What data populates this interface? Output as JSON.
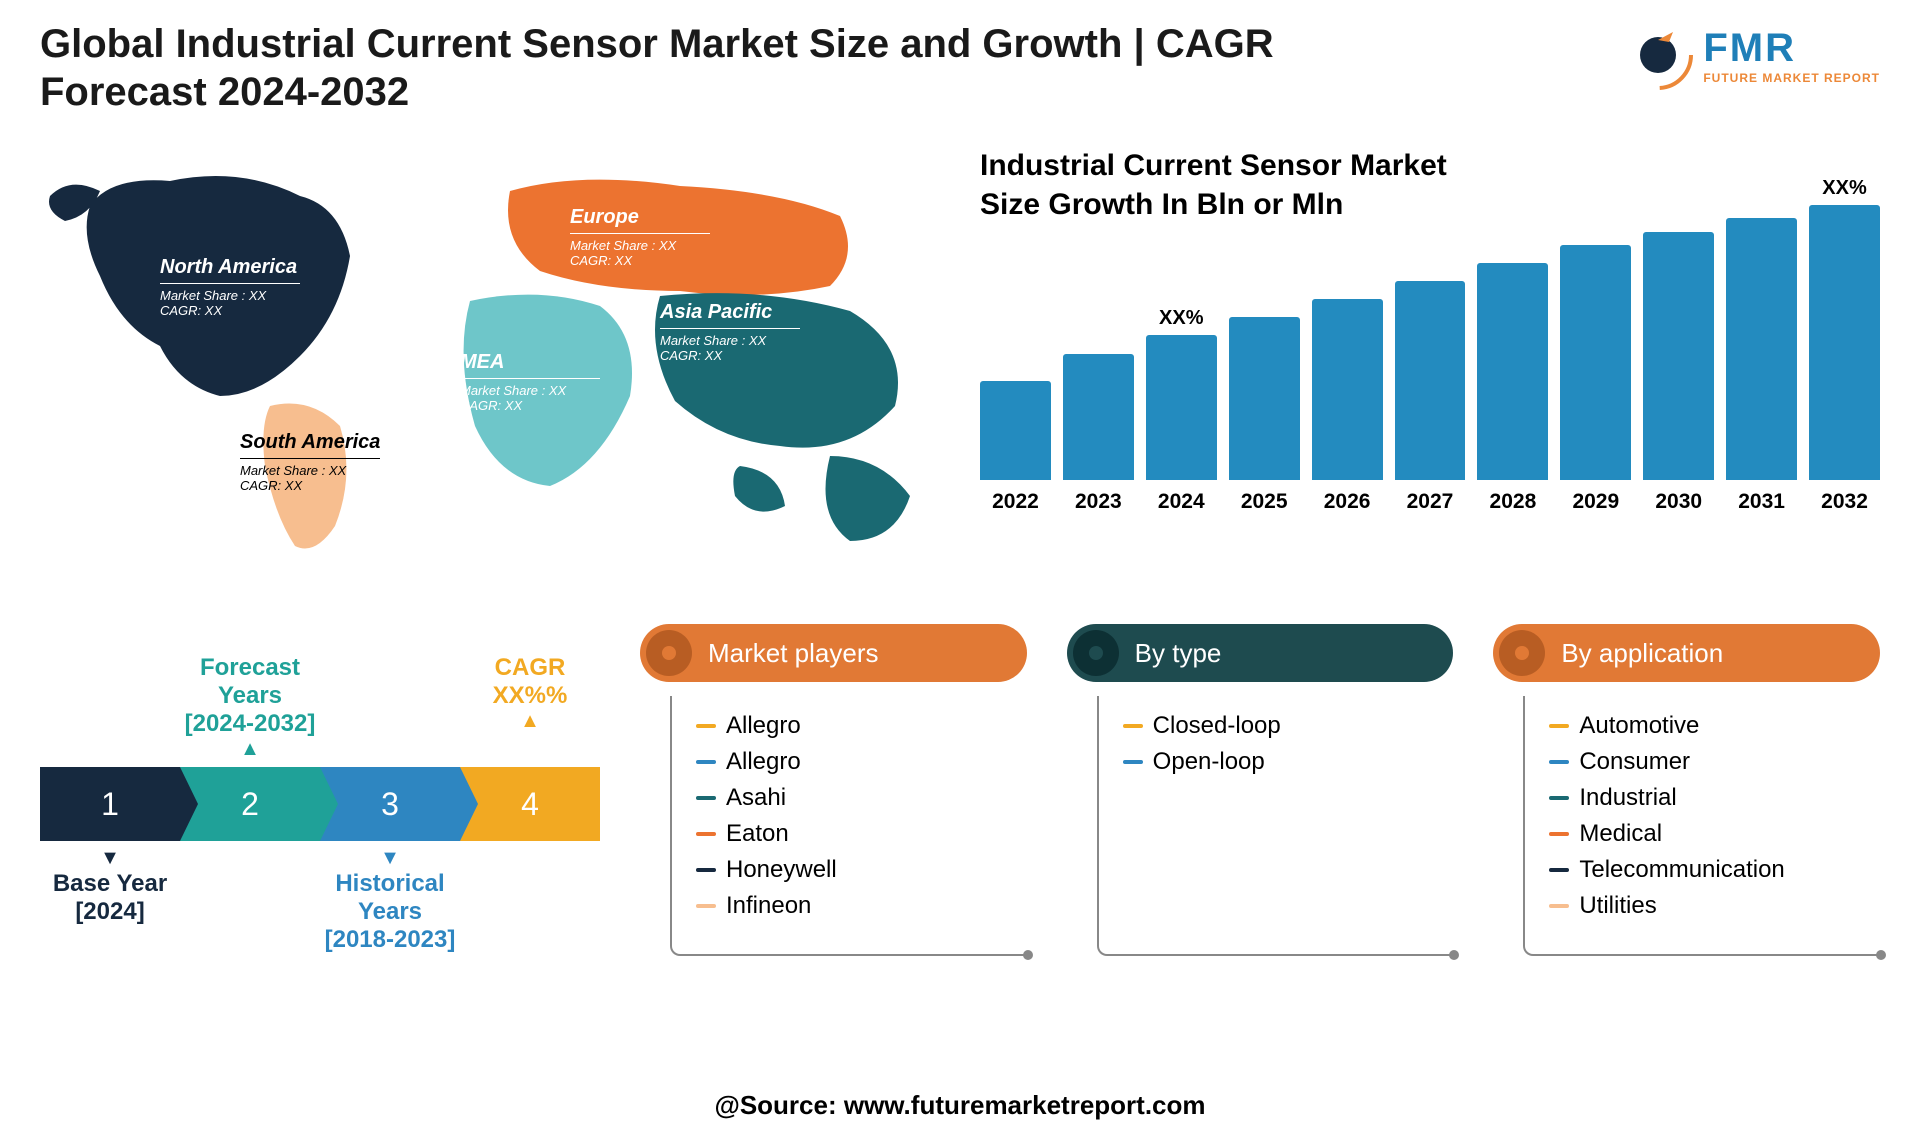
{
  "title": "Global Industrial Current Sensor Market Size and Growth | CAGR Forecast 2024-2032",
  "logo": {
    "main": "FMR",
    "sub": "FUTURE MARKET REPORT"
  },
  "map": {
    "regions": [
      {
        "name": "North America",
        "share": "Market Share : XX",
        "cagr": "CAGR: XX",
        "color": "#16293f"
      },
      {
        "name": "South America",
        "share": "Market Share : XX",
        "cagr": "CAGR: XX",
        "color": "#f7be8f"
      },
      {
        "name": "Europe",
        "share": "Market Share : XX",
        "cagr": "CAGR: XX",
        "color": "#ec7330"
      },
      {
        "name": "MEA",
        "share": "Market Share : XX",
        "cagr": "CAGR: XX",
        "color": "#6ec6c9"
      },
      {
        "name": "Asia Pacific",
        "share": "Market Share : XX",
        "cagr": "CAGR: XX",
        "color": "#1a6972"
      }
    ]
  },
  "bar_chart": {
    "title": "Industrial Current Sensor Market Size Growth In Bln or Mln",
    "categories": [
      "2022",
      "2023",
      "2024",
      "2025",
      "2026",
      "2027",
      "2028",
      "2029",
      "2030",
      "2031",
      "2032"
    ],
    "values": [
      110,
      140,
      160,
      180,
      200,
      220,
      240,
      260,
      275,
      290,
      305
    ],
    "value_labels": [
      "",
      "",
      "XX%",
      "",
      "",
      "",
      "",
      "",
      "",
      "",
      "XX%"
    ],
    "ymax": 310,
    "bar_color": "#238bbf",
    "label_fontsize": 21
  },
  "timeline": {
    "segments": [
      {
        "num": "1",
        "color": "#16293f",
        "arrow_color": "#16293f"
      },
      {
        "num": "2",
        "color": "#1fa198",
        "arrow_color": "#1fa198"
      },
      {
        "num": "3",
        "color": "#2e86c1",
        "arrow_color": "#2e86c1"
      },
      {
        "num": "4",
        "color": "#f2a922",
        "arrow_color": "#f2a922"
      }
    ],
    "labels": {
      "forecast": {
        "title": "Forecast Years",
        "sub": "[2024-2032]",
        "color": "#1fa198"
      },
      "cagr": {
        "title": "CAGR",
        "sub": "XX%%",
        "color": "#f2a922"
      },
      "base": {
        "title": "Base Year",
        "sub": "[2024]",
        "color": "#16293f"
      },
      "historical": {
        "title": "Historical Years",
        "sub": "[2018-2023]",
        "color": "#2e86c1"
      }
    }
  },
  "pills": [
    {
      "title": "Market players",
      "bg": "#e17935",
      "dot_bg": "#b85d23",
      "items": [
        "Allegro",
        "Allegro",
        "Asahi",
        "Eaton",
        "Honeywell",
        "Infineon"
      ],
      "tick_colors": [
        "#f2a922",
        "#2e86c1",
        "#1a6972",
        "#ec7330",
        "#16293f",
        "#f7be8f"
      ]
    },
    {
      "title": "By type",
      "bg": "#1e4b4f",
      "dot_bg": "#0d3034",
      "items": [
        "Closed-loop",
        "Open-loop"
      ],
      "tick_colors": [
        "#f2a922",
        "#2e86c1"
      ]
    },
    {
      "title": "By application",
      "bg": "#e17935",
      "dot_bg": "#b85d23",
      "items": [
        "Automotive",
        "Consumer",
        "Industrial",
        "Medical",
        "Telecommunication",
        "Utilities"
      ],
      "tick_colors": [
        "#f2a922",
        "#2e86c1",
        "#1a6972",
        "#ec7330",
        "#16293f",
        "#f7be8f"
      ]
    }
  ],
  "source": "@Source: www.futuremarketreport.com"
}
